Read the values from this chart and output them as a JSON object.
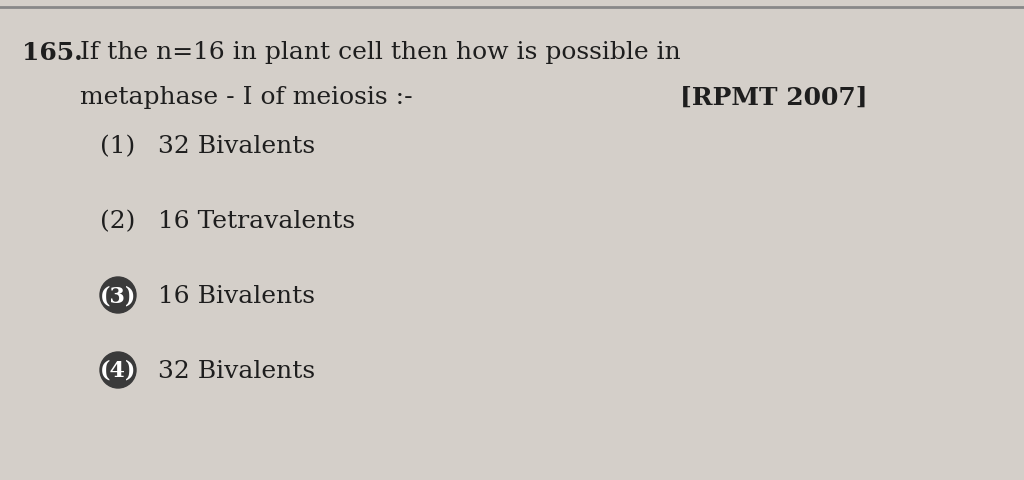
{
  "question_number": "165.",
  "question_line1": "If the n=16 in plant cell then how is possible in",
  "question_line2": "metaphase - I of meiosis :-",
  "reference": "[RPMT 2007]",
  "options": [
    {
      "number": "1",
      "text": "32 Bivalents",
      "circled": false
    },
    {
      "number": "2",
      "text": "16 Tetravalents",
      "circled": false
    },
    {
      "number": "3",
      "text": "16 Bivalents",
      "circled": true
    },
    {
      "number": "4",
      "text": "32 Bivalents",
      "circled": true
    }
  ],
  "bg_color": "#d4cfc9",
  "text_color": "#1e1e1e",
  "circle_color": "#3a3a3a",
  "title_fontsize": 18,
  "option_fontsize": 18,
  "top_line_color": "#888888"
}
